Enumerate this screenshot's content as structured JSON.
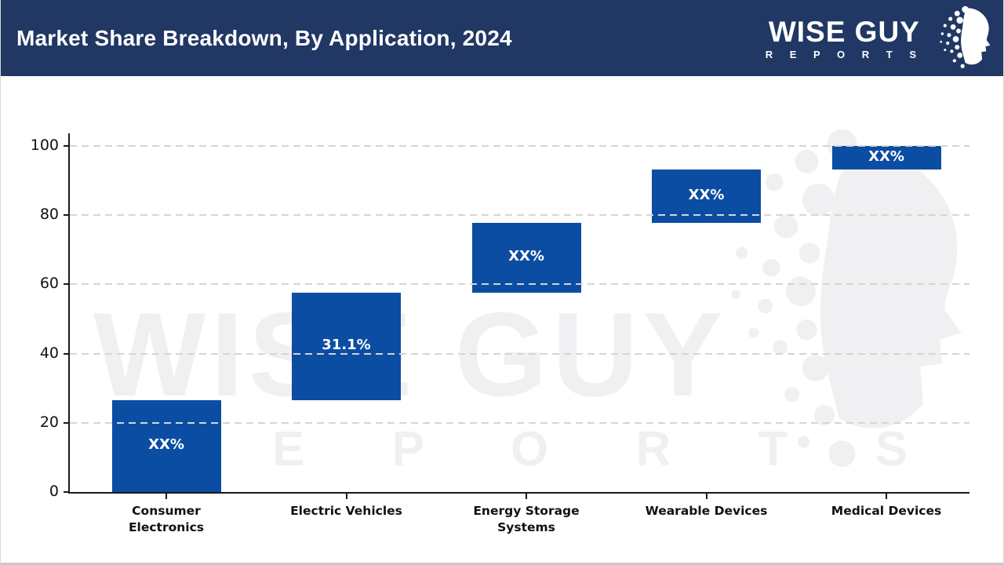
{
  "header": {
    "title": "Market Share Breakdown, By Application, 2024",
    "logo": {
      "name": "WISE GUY",
      "subtitle": "R E P O R T S"
    }
  },
  "watermark": {
    "line1": "WISE GUY",
    "line2": "R E P O R T S"
  },
  "chart_data": {
    "type": "bar",
    "subtype": "waterfall",
    "title": "Market Share Breakdown, By Application, 2024",
    "categories": [
      "Consumer Electronics",
      "Electric Vehicles",
      "Energy Storage Systems",
      "Wearable Devices",
      "Medical Devices"
    ],
    "bars": [
      {
        "category": "Consumer Electronics",
        "start": 0,
        "end": 26.6,
        "label": "XX%"
      },
      {
        "category": "Electric Vehicles",
        "start": 26.6,
        "end": 57.7,
        "label": "31.1%"
      },
      {
        "category": "Energy Storage Systems",
        "start": 57.7,
        "end": 77.7,
        "label": "XX%"
      },
      {
        "category": "Wearable Devices",
        "start": 77.7,
        "end": 93.1,
        "label": "XX%"
      },
      {
        "category": "Medical Devices",
        "start": 93.1,
        "end": 100,
        "label": "XX%"
      }
    ],
    "ylim": [
      0,
      100
    ],
    "yticks": [
      0,
      20,
      40,
      60,
      80,
      100
    ],
    "grid": "dashed-horizontal",
    "legend": "none",
    "bar_color": "#0B4DA2",
    "bar_label_color": "#FFFFFF"
  },
  "colors": {
    "header_bg": "#213764",
    "bar": "#0B4DA2",
    "grid": "#D5D5D5",
    "axis": "#1A1A1A",
    "watermark": "#F0F0F2"
  }
}
